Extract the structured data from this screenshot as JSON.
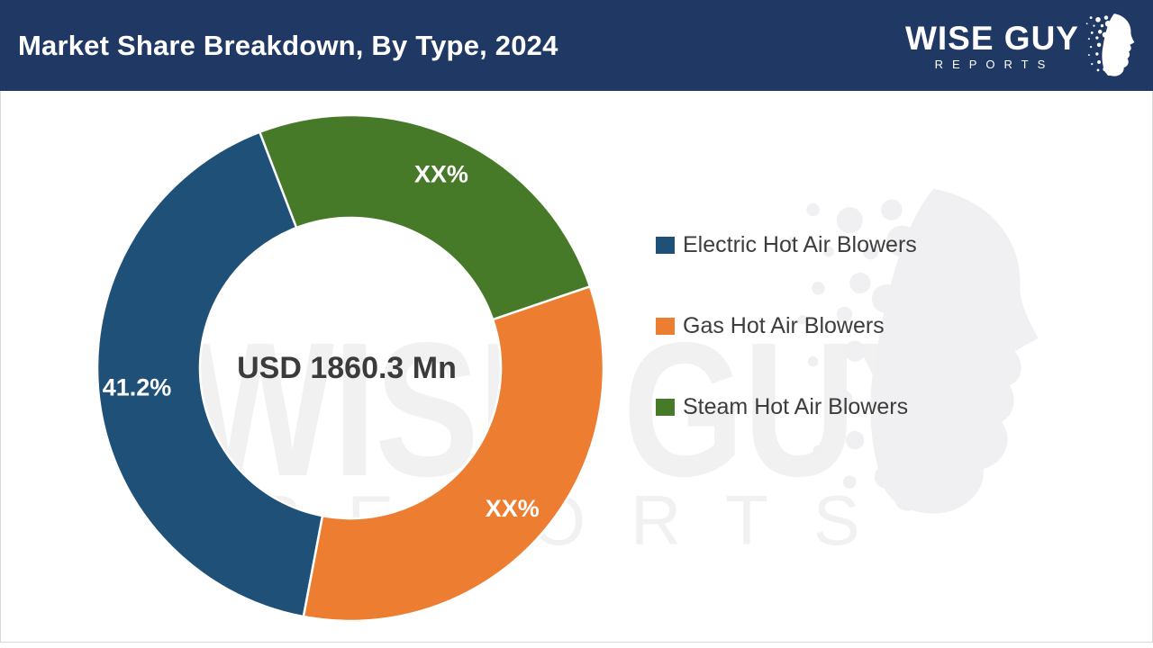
{
  "header": {
    "title": "Market Share Breakdown, By Type, 2024",
    "background_color": "#203864",
    "logo": {
      "line1": "WISE GUY",
      "line2": "REPORTS"
    }
  },
  "watermark": {
    "line1": "WISE GUY",
    "line2": "REPORTS"
  },
  "chart_data": {
    "type": "pie",
    "subtype": "donut",
    "title": "Market Share Breakdown, By Type, 2024",
    "center_label": "USD 1860.3 Mn",
    "start_angle_deg": 111,
    "direction": "counterclockwise",
    "inner_radius_ratio": 0.595,
    "legend_position": "right",
    "segments": [
      {
        "name": "Electric Hot Air Blowers",
        "value_pct": 41.2,
        "display_label": "41.2%",
        "color": "#1F5077"
      },
      {
        "name": "Gas Hot Air Blowers",
        "value_pct": 33.2,
        "display_label": "XX%",
        "color": "#ED7D31"
      },
      {
        "name": "Steam Hot Air Blowers",
        "value_pct": 25.6,
        "display_label": "XX%",
        "color": "#467A28"
      }
    ]
  }
}
